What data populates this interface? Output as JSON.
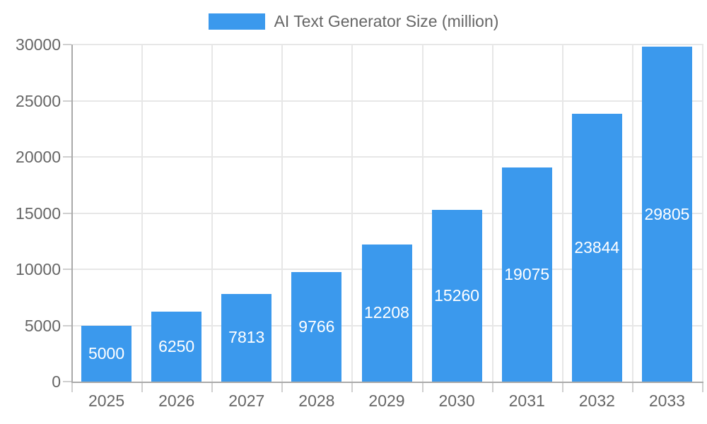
{
  "chart_data": {
    "type": "bar",
    "title": "AI Text Generator Size (million)",
    "categories": [
      "2025",
      "2026",
      "2027",
      "2028",
      "2029",
      "2030",
      "2031",
      "2032",
      "2033"
    ],
    "values": [
      5000,
      6250,
      7813,
      9766,
      12208,
      15260,
      19075,
      23844,
      29805
    ],
    "xlabel": "",
    "ylabel": "",
    "ylim": [
      0,
      30000
    ],
    "yticks": [
      0,
      5000,
      10000,
      15000,
      20000,
      25000,
      30000
    ],
    "grid": true,
    "legend_position": "top-center",
    "bar_color": "#3B99ED",
    "value_label_color": "#FFFFFF",
    "axis_text_color": "#666666",
    "gridline_color": "#E7E7E7",
    "axis_line_color": "#A9A9A9"
  },
  "legend": {
    "label": "AI Text Generator Size (million)"
  }
}
